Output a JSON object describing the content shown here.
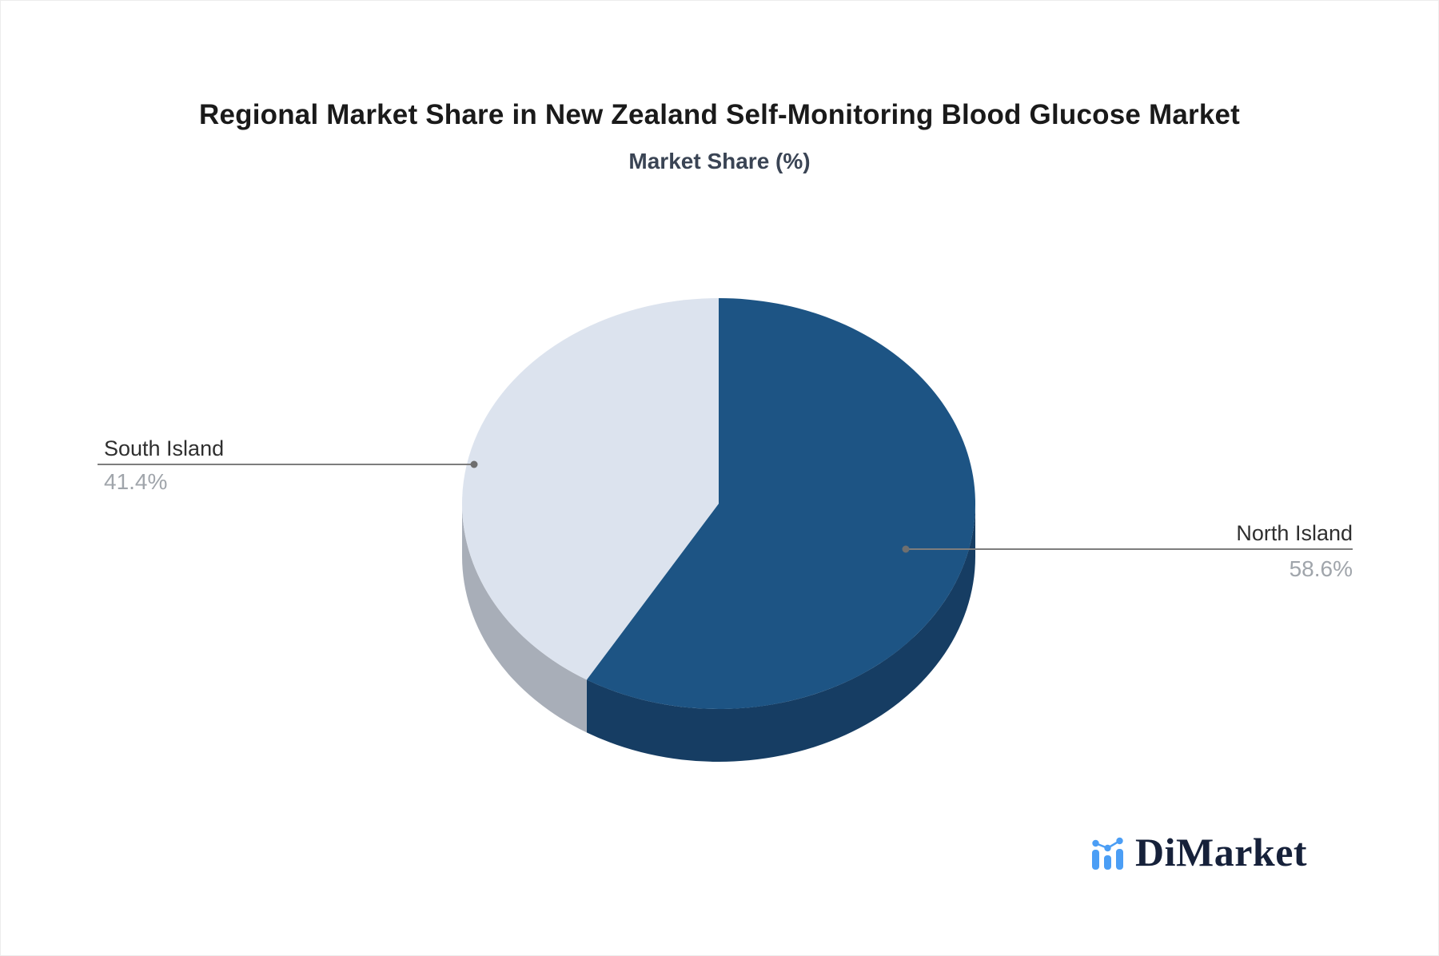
{
  "title": "Regional Market Share in New Zealand Self-Monitoring Blood Glucose Market",
  "subtitle": "Market Share (%)",
  "chart_data": {
    "type": "pie",
    "title": "Regional Market Share in New Zealand Self-Monitoring Blood Glucose Market",
    "subtitle": "Market Share (%)",
    "categories": [
      "North Island",
      "South Island"
    ],
    "values": [
      58.6,
      41.4
    ],
    "unit": "%",
    "colors": [
      "#1d5484",
      "#dce3ee"
    ],
    "side_colors": [
      "#163d63",
      "#a8aeb8"
    ],
    "start_angle": "top",
    "direction": "clockwise",
    "effect_3d": true,
    "legend": "none",
    "label_style": "outside-callout"
  },
  "callouts": {
    "south": {
      "label": "South Island",
      "value": "41.4%"
    },
    "north": {
      "label": "North Island",
      "value": "58.6%"
    }
  },
  "leader": {
    "line_color": "#7d7d7d",
    "dot_color": "#6f6f6f"
  },
  "logo": {
    "text": "DiMarket",
    "icon": "bar-chart-logo-icon",
    "icon_color": "#4b9ef5",
    "text_color": "#16213a"
  }
}
